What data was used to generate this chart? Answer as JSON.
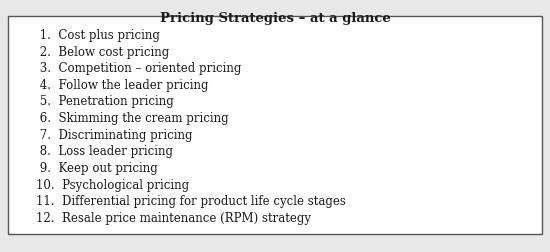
{
  "title": "Pricing Strategies – at a glance",
  "title_fontsize": 9.5,
  "title_fontweight": "bold",
  "items": [
    " 1.  Cost plus pricing",
    " 2.  Below cost pricing",
    " 3.  Competition – oriented pricing",
    " 4.  Follow the leader pricing",
    " 5.  Penetration pricing",
    " 6.  Skimming the cream pricing",
    " 7.  Discriminating pricing",
    " 8.  Loss leader pricing",
    " 9.  Keep out pricing",
    "10.  Psychological pricing",
    "11.  Differential pricing for product life cycle stages",
    "12.  Resale price maintenance (RPM) strategy"
  ],
  "item_fontsize": 8.5,
  "item_fontfamily": "serif",
  "bg_color": "#ffffff",
  "box_edgecolor": "#555555",
  "text_color": "#1a1a1a",
  "fig_bg": "#e8e8e8",
  "title_color": "#1a1a1a"
}
